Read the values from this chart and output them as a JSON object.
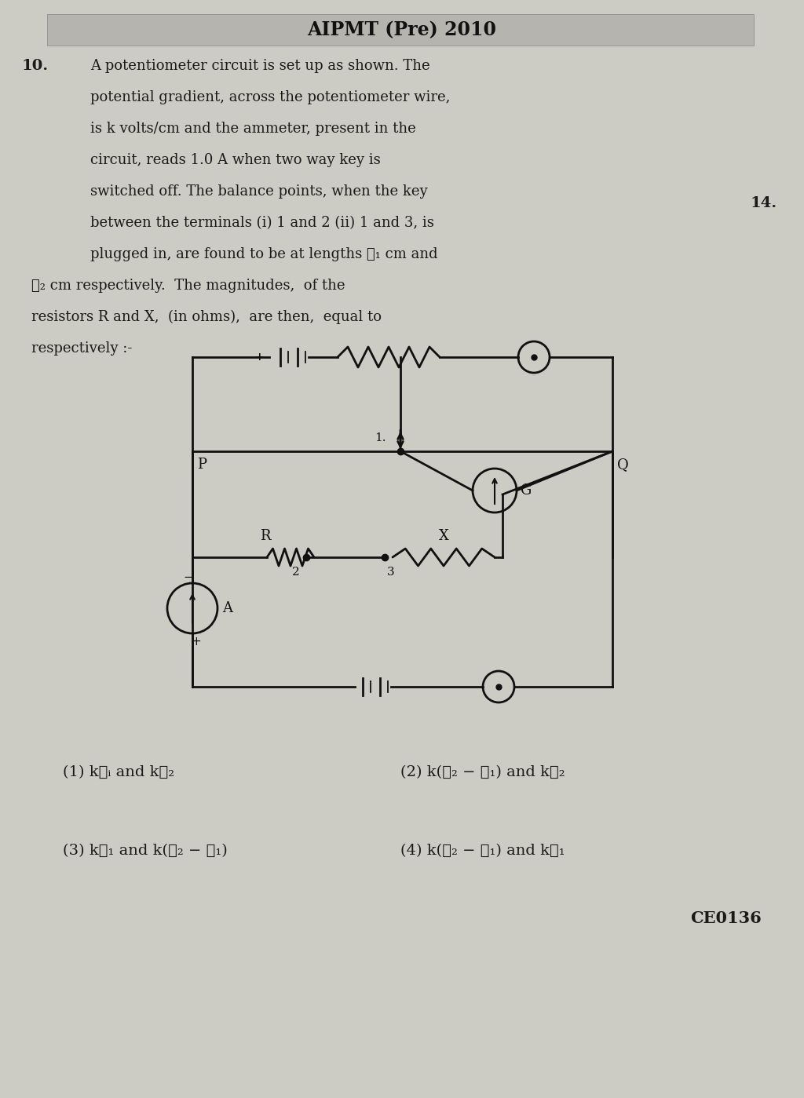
{
  "bg_color": "#cccbc4",
  "text_color": "#1a1a1a",
  "title": "AIPMT (Pre) 2010",
  "title_bg": "#a8a8a8",
  "q_number": "10.",
  "side_number": "14.",
  "question_lines": [
    "A potentiometer circuit is set up as shown. The",
    "potential gradient, across the potentiometer wire,",
    "is k volts/cm and the ammeter, present in the",
    "circuit, reads 1.0 A when two way key is",
    "switched off. The balance points, when the key",
    "between the terminals (i) 1 and 2 (ii) 1 and 3, is",
    "plugged in, are found to be at lengths ℓ₁ cm and"
  ],
  "line2": "ℓ₂ cm respectively.  The magnitudes,  of the",
  "line3": "resistors R and X,  (in ohms),  are then,  equal to",
  "line4": "respectively :-",
  "opt1": "(1) kℓᵢ and kℓ₂",
  "opt2": "(2) k(ℓ₂ − ℓ₁) and kℓ₂",
  "opt3": "(3) kℓ₁ and k(ℓ₂ − ℓ₁)",
  "opt4": "(4) k(ℓ₂ − ℓ₁) and kℓ₁",
  "code": "CE0136"
}
